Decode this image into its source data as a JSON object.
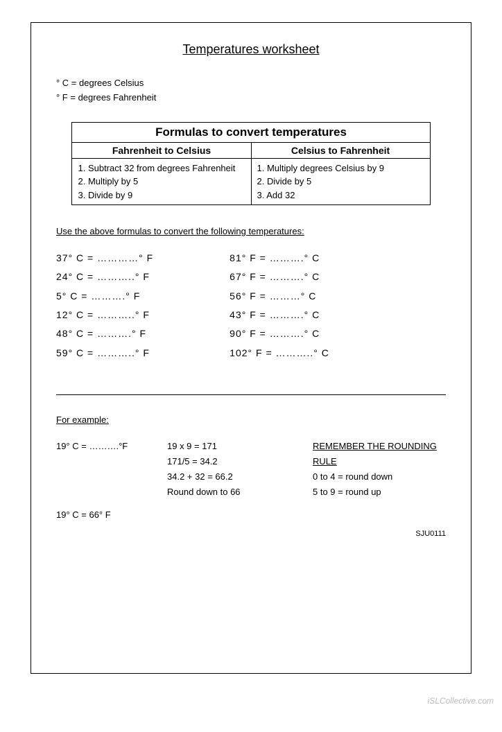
{
  "title": "Temperatures worksheet",
  "legend": {
    "c": "° C  =  degrees Celsius",
    "f": "° F  =  degrees Fahrenheit"
  },
  "formula": {
    "header": "Formulas to convert temperatures",
    "left_head": "Fahrenheit to Celsius",
    "right_head": "Celsius to Fahrenheit",
    "left_steps": [
      "1.  Subtract 32 from degrees Fahrenheit",
      "2.  Multiply by 5",
      "3.  Divide by 9"
    ],
    "right_steps": [
      "1.  Multiply degrees Celsius by 9",
      "2.  Divide by 5",
      "3.  Add 32"
    ]
  },
  "instruction": "Use the above formulas to convert the following temperatures:",
  "exercise": {
    "left": [
      "37° C   =   …………° F",
      "24° C   =   ………..° F",
      "  5° C    =   ……….° F",
      "12° C   =   ………..° F",
      "48° C   =   ……….° F",
      "59° C   =   ………..° F"
    ],
    "right": [
      " 81° F   =   ……….° C",
      " 67° F   =   ……….° C",
      " 56° F   =   ………° C",
      " 43° F   =   ……….° C",
      " 90° F   =   ……….° C",
      "102° F   =   ………..° C"
    ]
  },
  "example": {
    "label": "For example:",
    "answer": "19° C  =  66° F"
  },
  "ex_left_line": "19° C  =  ……….°F",
  "ex_mid_lines": [
    "19 x 9 = 171",
    "171/5  =  34.2",
    "34.2 + 32  =  66.2",
    "Round down to 66"
  ],
  "rule": {
    "head": "REMEMBER THE ROUNDING RULE",
    "blank": "",
    "a": "0 to 4  =  round down",
    "b": "5 to 9  =  round up"
  },
  "ref": "SJU0111",
  "watermark": "iSLCollective.com"
}
